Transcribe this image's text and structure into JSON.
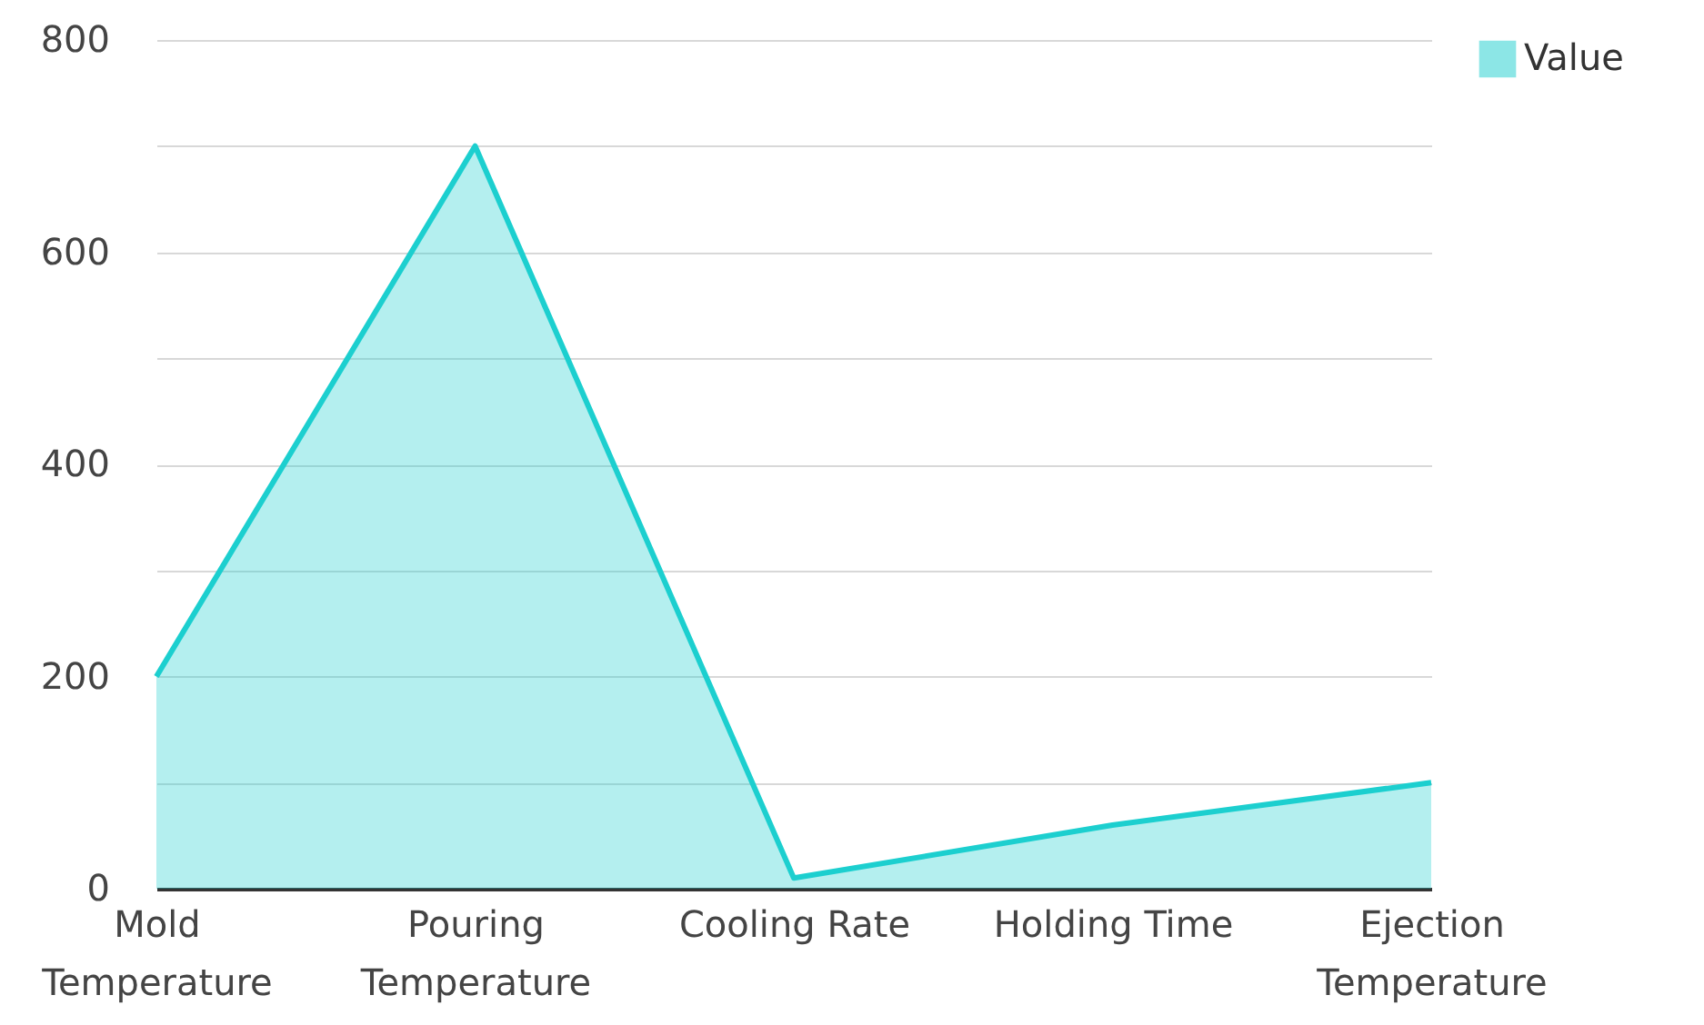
{
  "chart_data": {
    "type": "area",
    "categories": [
      "Mold Temperature",
      "Pouring Temperature",
      "Cooling Rate",
      "Holding Time",
      "Ejection Temperature"
    ],
    "series": [
      {
        "name": "Value",
        "color": "#1ccfcf",
        "values": [
          200,
          700,
          10,
          60,
          100
        ]
      }
    ],
    "ylim": [
      0,
      800
    ],
    "yticks": [
      0,
      {
        "value": 100,
        "label": null
      },
      200,
      {
        "value": 300,
        "label": null
      },
      400,
      {
        "value": 500,
        "label": null
      },
      600,
      {
        "value": 700,
        "label": null
      },
      800
    ],
    "grid": "y",
    "legend": "top right"
  }
}
